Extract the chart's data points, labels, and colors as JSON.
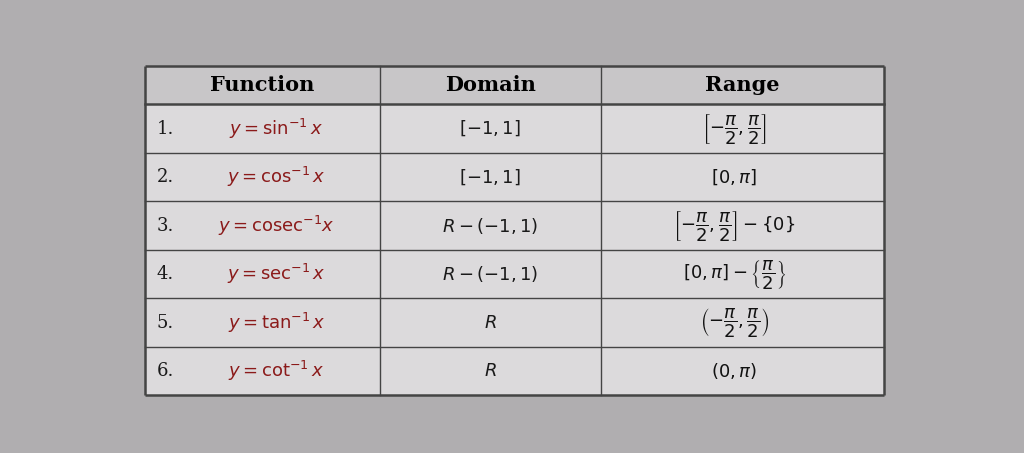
{
  "title_function": "Function",
  "title_domain": "Domain",
  "title_range": "Range",
  "rows": [
    {
      "num": "1.",
      "function": "$y=\\sin^{-1}x$",
      "domain": "$[-1,1]$",
      "range": "$\\left[-\\dfrac{\\pi}{2},\\dfrac{\\pi}{2}\\right]$"
    },
    {
      "num": "2.",
      "function": "$y=\\cos^{-1}x$",
      "domain": "$[-1,1]$",
      "range": "$[0,\\pi]$"
    },
    {
      "num": "3.",
      "function": "$y=\\mathrm{cosec}^{-1}x$",
      "domain": "$R-(-1,1)$",
      "range": "$\\left[-\\dfrac{\\pi}{2},\\dfrac{\\pi}{2}\\right]-\\{0\\}$"
    },
    {
      "num": "4.",
      "function": "$y=\\sec^{-1}x$",
      "domain": "$R-(-1,1)$",
      "range": "$[0,\\pi]-\\left\\{\\dfrac{\\pi}{2}\\right\\}$"
    },
    {
      "num": "5.",
      "function": "$y=\\tan^{-1}x$",
      "domain": "$R$",
      "range": "$\\left(-\\dfrac{\\pi}{2},\\dfrac{\\pi}{2}\\right)$"
    },
    {
      "num": "6.",
      "function": "$y=\\cot^{-1}x$",
      "domain": "$R$",
      "range": "$(0,\\pi)$"
    }
  ],
  "outer_bg": "#b0aeb0",
  "cell_bg": "#dcdadc",
  "header_bg": "#c8c6c8",
  "text_color": "#1a1a1a",
  "header_color": "#000000",
  "border_color": "#444444",
  "func_color": "#8B1A1A",
  "range_color": "#111111"
}
